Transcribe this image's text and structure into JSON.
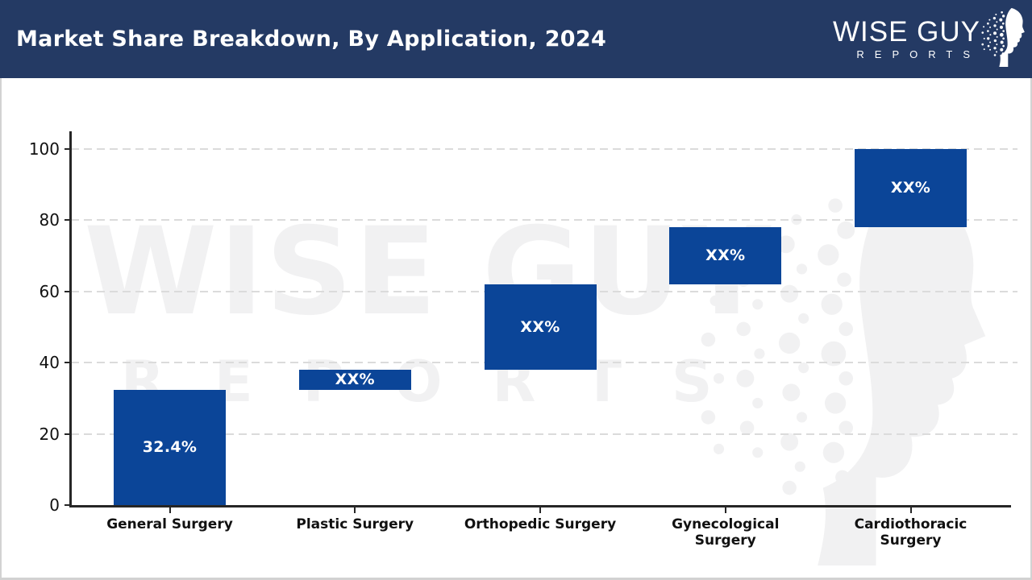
{
  "header": {
    "title": "Market Share Breakdown, By Application, 2024",
    "brand_name": "WISE GUY",
    "brand_sub": "REPORTS"
  },
  "watermark": {
    "line1": "WISE GUY",
    "line2": "REPORTS"
  },
  "colors": {
    "header_bg": "#243A64",
    "bar_fill": "#0B4598",
    "bar_label": "#FFFFFF",
    "axis": "#262626",
    "tick_label": "#111111",
    "gridline": "#DBDBDB",
    "watermark": "#F1F1F2",
    "page_bg": "#FFFFFF",
    "page_border": "#D2D2D2"
  },
  "chart_data": {
    "type": "bar",
    "subtype": "waterfall",
    "title": "Market Share Breakdown, By Application, 2024",
    "xlabel": "",
    "ylabel": "",
    "ylim": [
      0,
      100
    ],
    "yticks": [
      0,
      20,
      40,
      60,
      80,
      100
    ],
    "grid": "horizontal-dashed",
    "legend": null,
    "bar_color": "#0B4598",
    "categories": [
      "General Surgery",
      "Plastic Surgery",
      "Orthopedic Surgery",
      "Gynecological Surgery",
      "Cardiothoracic Surgery"
    ],
    "category_label_lines": [
      [
        "General Surgery"
      ],
      [
        "Plastic Surgery"
      ],
      [
        "Orthopedic Surgery"
      ],
      [
        "Gynecological",
        "Surgery"
      ],
      [
        "Cardiothoracic",
        "Surgery"
      ]
    ],
    "segments": [
      {
        "category": "General Surgery",
        "start": 0,
        "end": 32.4,
        "value_label": "32.4%"
      },
      {
        "category": "Plastic Surgery",
        "start": 32.4,
        "end": 38,
        "value_label": "XX%"
      },
      {
        "category": "Orthopedic Surgery",
        "start": 38,
        "end": 62,
        "value_label": "XX%"
      },
      {
        "category": "Gynecological Surgery",
        "start": 62,
        "end": 78,
        "value_label": "XX%"
      },
      {
        "category": "Cardiothoracic Surgery",
        "start": 78,
        "end": 100,
        "value_label": "XX%"
      }
    ]
  }
}
